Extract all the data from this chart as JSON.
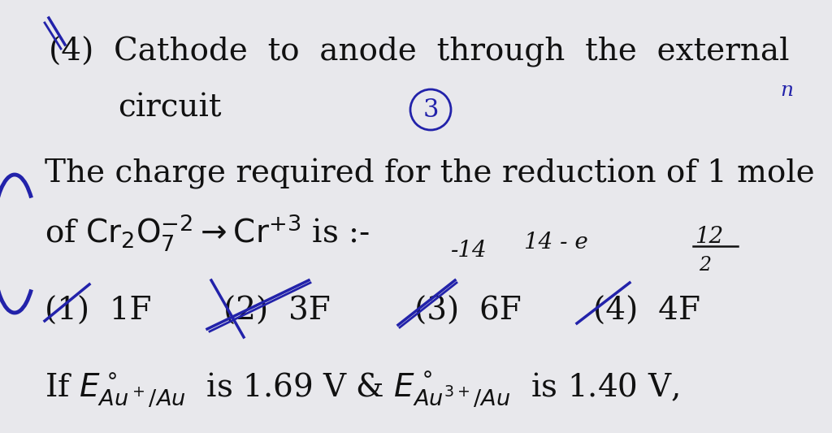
{
  "background_color": "#e8e8ec",
  "fig_width": 10.24,
  "fig_height": 5.33,
  "dpi": 100,
  "text_color": "#111111",
  "blue_color": "#2222aa",
  "line1": "(4)  Cathode  to  anode  through  the  external",
  "line2": "circuit",
  "line3": "The charge required for the reduction of 1 mole",
  "line4_prefix": "of ",
  "line4_eq": "Cr_2O_7^{-2} \\rightarrow Cr^{+3}",
  "line4_suffix": " is :-",
  "opt1": "(1)  1F",
  "opt2": "(2)  3F",
  "opt3": "(3)  6F",
  "opt4": "(4)  4F",
  "bottom": "If $E^\\circ_{Au^+/Au}$  is 1.69 V & $E^\\circ_{Au^{3+}/Au}$  is 1.40 V,",
  "ann14": "-14",
  "ann14e": "14 - e",
  "ann12": "12",
  "ann2": "2",
  "circle3_text": "3",
  "n_text": "n"
}
